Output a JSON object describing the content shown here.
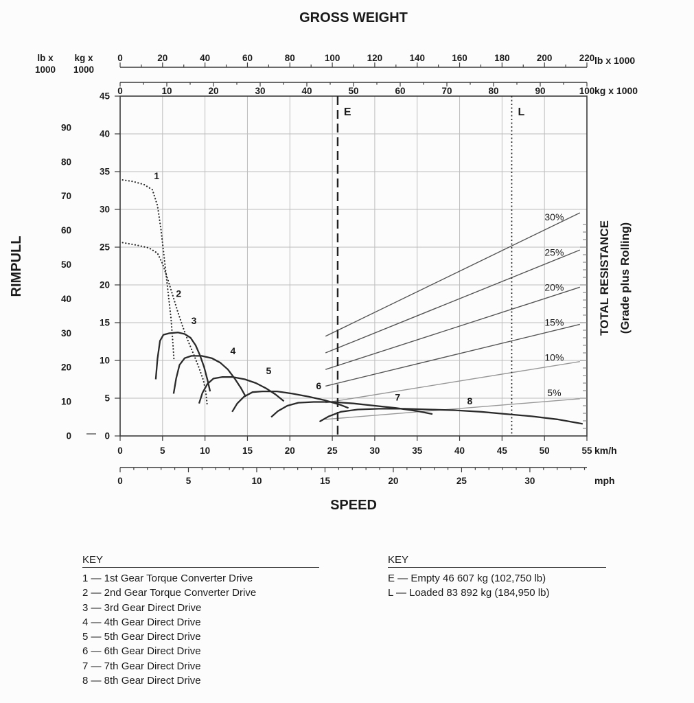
{
  "chart_data": {
    "type": "line",
    "top_title": "GROSS WEIGHT",
    "bottom_title": "SPEED",
    "left_title": "RIMPULL",
    "right_title_line1": "TOTAL RESISTANCE",
    "right_title_line2": "(Grade plus Rolling)",
    "colors": {
      "curve": "#2a2a2a",
      "grid": "#bdbdbd",
      "axis": "#3a3a3a",
      "grade_major": "#555555",
      "grade_minor": "#979797",
      "ruler": "#777777"
    },
    "axes": {
      "top_lb": {
        "unit": "lb x 1000",
        "header_line1": "lb x",
        "header_line2": "1000",
        "max": 220,
        "major": 20,
        "minor": 10,
        "ticks": [
          0,
          20,
          40,
          60,
          80,
          100,
          120,
          140,
          160,
          180,
          200,
          220
        ]
      },
      "top_kg": {
        "unit": "kg x 1000",
        "header_line1": "kg x",
        "header_line2": "1000",
        "max": 100,
        "major": 10,
        "minor": 5,
        "ticks": [
          0,
          10,
          20,
          30,
          40,
          50,
          60,
          70,
          80,
          90,
          100
        ]
      },
      "left_kg": {
        "max": 45,
        "major": 5,
        "ticks": [
          45,
          40,
          35,
          30,
          25,
          20,
          15,
          10,
          5,
          0
        ]
      },
      "left_lb": {
        "ticks": [
          90,
          80,
          70,
          60,
          50,
          40,
          30,
          20,
          10,
          0
        ],
        "lb_per_kg": 2.20462
      },
      "bottom_kmh": {
        "unit": "km/h",
        "max": 55,
        "major": 5,
        "ticks": [
          0,
          5,
          10,
          15,
          20,
          25,
          30,
          35,
          40,
          45,
          50,
          55
        ]
      },
      "bottom_mph": {
        "unit": "mph",
        "ticks": [
          0,
          5,
          10,
          15,
          20,
          25,
          30
        ],
        "minor_max": 34,
        "kmh_per_mph": 1.60934
      }
    },
    "grade_line_span": {
      "start_frac": 0.44,
      "end_frac": 0.985,
      "label_frac": 0.93
    },
    "grade_lines": [
      {
        "percent": 30,
        "label": "30%"
      },
      {
        "percent": 25,
        "label": "25%"
      },
      {
        "percent": 20,
        "label": "20%"
      },
      {
        "percent": 15,
        "label": "15%"
      },
      {
        "percent": 10,
        "label": "10%"
      },
      {
        "percent": 5,
        "label": "5%"
      }
    ],
    "weight_markers": [
      {
        "id": "E",
        "label": "E",
        "weight_kg_1000": 46.607,
        "line_style": "dashed"
      },
      {
        "id": "L",
        "label": "L",
        "weight_kg_1000": 83.892,
        "line_style": "dotted"
      }
    ],
    "gear_curves": [
      {
        "gear": "1",
        "drive": "torque-converter",
        "style": "dotted",
        "label_pos": [
          4.3,
          34.0
        ],
        "points": [
          [
            0.3,
            33.9
          ],
          [
            1.5,
            33.7
          ],
          [
            2.8,
            33.3
          ],
          [
            3.8,
            32.6
          ],
          [
            4.4,
            30.5
          ],
          [
            4.8,
            27.5
          ],
          [
            5.1,
            24.5
          ],
          [
            5.4,
            21.5
          ],
          [
            5.7,
            18.5
          ],
          [
            6.0,
            15.5
          ],
          [
            6.2,
            12.5
          ],
          [
            6.35,
            10.0
          ]
        ]
      },
      {
        "gear": "2",
        "drive": "torque-converter",
        "style": "dotted",
        "label_pos": [
          6.9,
          18.4
        ],
        "points": [
          [
            0.3,
            25.6
          ],
          [
            1.8,
            25.3
          ],
          [
            3.4,
            24.9
          ],
          [
            4.4,
            24.2
          ],
          [
            5.0,
            22.8
          ],
          [
            5.6,
            20.8
          ],
          [
            6.2,
            18.6
          ],
          [
            6.8,
            16.4
          ],
          [
            7.4,
            14.4
          ],
          [
            8.0,
            12.6
          ],
          [
            8.7,
            10.7
          ],
          [
            9.3,
            9.0
          ],
          [
            9.8,
            7.4
          ],
          [
            10.1,
            5.8
          ],
          [
            10.25,
            4.2
          ]
        ]
      },
      {
        "gear": "3",
        "drive": "direct",
        "style": "solid",
        "label_pos": [
          8.7,
          14.8
        ],
        "points": [
          [
            4.2,
            7.5
          ],
          [
            4.4,
            10.2
          ],
          [
            4.7,
            12.6
          ],
          [
            5.1,
            13.4
          ],
          [
            5.8,
            13.6
          ],
          [
            6.8,
            13.7
          ],
          [
            7.6,
            13.5
          ],
          [
            8.3,
            13.0
          ],
          [
            8.9,
            12.0
          ],
          [
            9.4,
            10.7
          ],
          [
            9.9,
            9.1
          ],
          [
            10.3,
            7.4
          ],
          [
            10.6,
            5.9
          ]
        ]
      },
      {
        "gear": "4",
        "drive": "direct",
        "style": "solid",
        "label_pos": [
          13.3,
          10.8
        ],
        "points": [
          [
            6.3,
            5.6
          ],
          [
            6.6,
            7.6
          ],
          [
            7.0,
            9.4
          ],
          [
            7.6,
            10.3
          ],
          [
            8.4,
            10.6
          ],
          [
            9.6,
            10.6
          ],
          [
            10.8,
            10.3
          ],
          [
            11.8,
            9.7
          ],
          [
            12.7,
            8.8
          ],
          [
            13.5,
            7.6
          ],
          [
            14.2,
            6.4
          ],
          [
            14.8,
            5.2
          ]
        ]
      },
      {
        "gear": "5",
        "drive": "direct",
        "style": "solid",
        "label_pos": [
          17.5,
          8.2
        ],
        "points": [
          [
            9.3,
            4.3
          ],
          [
            9.7,
            5.7
          ],
          [
            10.3,
            6.9
          ],
          [
            11.0,
            7.6
          ],
          [
            12.0,
            7.8
          ],
          [
            13.3,
            7.8
          ],
          [
            14.7,
            7.5
          ],
          [
            16.0,
            7.0
          ],
          [
            17.2,
            6.3
          ],
          [
            18.3,
            5.5
          ],
          [
            19.3,
            4.6
          ]
        ]
      },
      {
        "gear": "6",
        "drive": "direct",
        "style": "solid",
        "label_pos": [
          23.4,
          6.2
        ],
        "points": [
          [
            13.2,
            3.2
          ],
          [
            13.8,
            4.3
          ],
          [
            14.6,
            5.2
          ],
          [
            15.6,
            5.8
          ],
          [
            16.8,
            5.9
          ],
          [
            18.5,
            5.9
          ],
          [
            20.3,
            5.6
          ],
          [
            22.2,
            5.2
          ],
          [
            24.2,
            4.7
          ],
          [
            26.0,
            4.1
          ],
          [
            26.9,
            3.7
          ]
        ]
      },
      {
        "gear": "7",
        "drive": "direct",
        "style": "solid",
        "label_pos": [
          32.7,
          4.7
        ],
        "points": [
          [
            17.8,
            2.5
          ],
          [
            18.6,
            3.3
          ],
          [
            19.7,
            4.0
          ],
          [
            21.0,
            4.4
          ],
          [
            22.8,
            4.5
          ],
          [
            25.0,
            4.5
          ],
          [
            27.5,
            4.3
          ],
          [
            30.0,
            4.0
          ],
          [
            32.5,
            3.7
          ],
          [
            35.0,
            3.3
          ],
          [
            36.8,
            2.9
          ]
        ]
      },
      {
        "gear": "8",
        "drive": "direct",
        "style": "solid",
        "label_pos": [
          41.2,
          4.2
        ],
        "points": [
          [
            23.5,
            1.9
          ],
          [
            24.6,
            2.6
          ],
          [
            26.0,
            3.2
          ],
          [
            28.0,
            3.5
          ],
          [
            30.5,
            3.6
          ],
          [
            33.5,
            3.6
          ],
          [
            36.5,
            3.5
          ],
          [
            39.5,
            3.4
          ],
          [
            42.5,
            3.2
          ],
          [
            45.5,
            2.9
          ],
          [
            48.5,
            2.6
          ],
          [
            51.5,
            2.2
          ],
          [
            54.5,
            1.6
          ]
        ]
      }
    ]
  },
  "keys": [
    {
      "title": "KEY",
      "items": [
        "1 — 1st Gear Torque Converter Drive",
        "2 — 2nd Gear Torque Converter Drive",
        "3 — 3rd Gear Direct Drive",
        "4 — 4th Gear Direct Drive",
        "5 — 5th Gear Direct Drive",
        "6 — 6th Gear Direct Drive",
        "7 — 7th Gear Direct Drive",
        "8 — 8th Gear Direct Drive"
      ]
    },
    {
      "title": "KEY",
      "items": [
        "E — Empty 46 607 kg (102,750 lb)",
        "L — Loaded 83 892 kg (184,950 lb)"
      ]
    }
  ]
}
